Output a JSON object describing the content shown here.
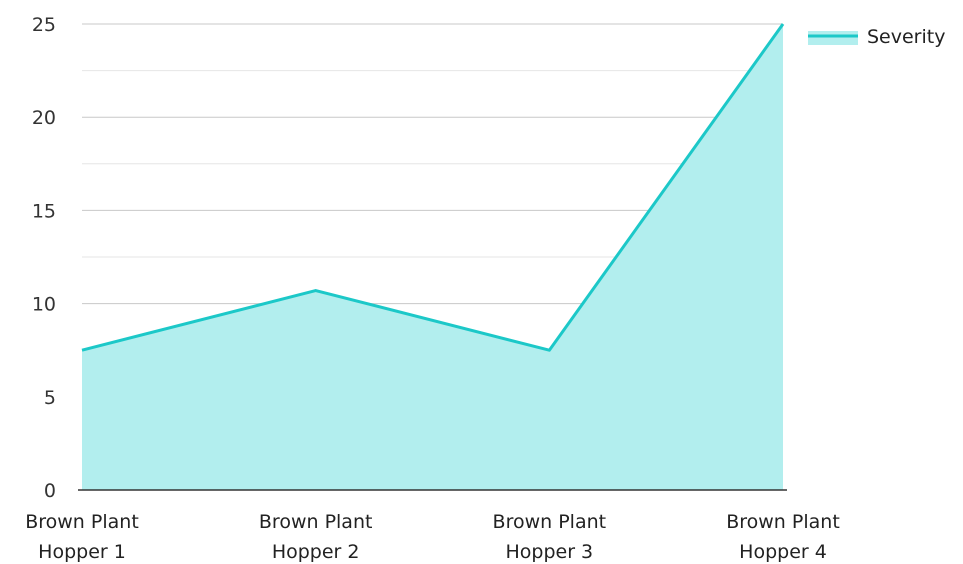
{
  "chart_data": {
    "type": "area",
    "categories": [
      [
        "Brown Plant",
        "Hopper 1"
      ],
      [
        "Brown Plant",
        "Hopper 2"
      ],
      [
        "Brown Plant",
        "Hopper 3"
      ],
      [
        "Brown Plant",
        "Hopper 4"
      ]
    ],
    "series": [
      {
        "name": "Severity",
        "values": [
          7.5,
          10.7,
          7.5,
          25
        ]
      }
    ],
    "ylim": [
      0,
      25
    ],
    "yticks": [
      0,
      5,
      10,
      15,
      20,
      25
    ],
    "grid": true,
    "legend": "top-right",
    "colors": {
      "line": "#1cc8c8",
      "fill": "#b2eeee",
      "grid_major": "#c8c8c8",
      "grid_minor": "#e6e6e6",
      "axis": "#333333"
    }
  }
}
